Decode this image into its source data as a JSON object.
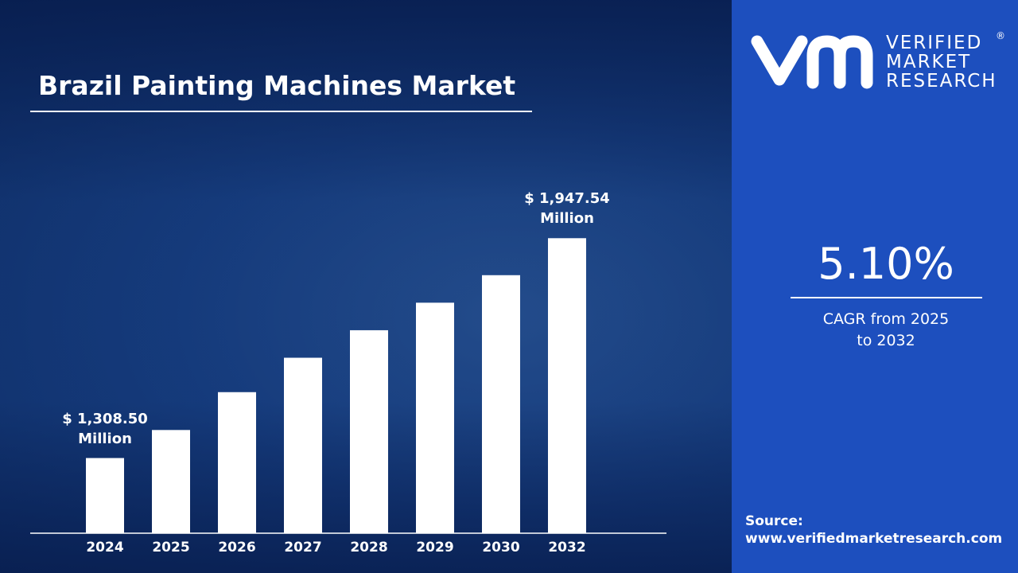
{
  "chart_data": {
    "type": "bar",
    "title": "Brazil Painting Machines Market",
    "categories": [
      "2024",
      "2025",
      "2026",
      "2027",
      "2028",
      "2029",
      "2030",
      "2032"
    ],
    "values": [
      1308.5,
      1390,
      1500,
      1600,
      1680,
      1760,
      1840,
      1947.54
    ],
    "value_labels": [
      "$ 1,308.50 Million",
      null,
      null,
      null,
      null,
      null,
      null,
      "$ 1,947.54 Million"
    ],
    "color": "#ffffff",
    "ylim": [
      1090,
      2050
    ]
  },
  "panel": {
    "brand": [
      "VERIFIED",
      "MARKET",
      "RESEARCH"
    ],
    "registered": "®",
    "cagr": "5.10%",
    "cagr_caption": "CAGR from 2025 to 2032",
    "source_label": "Source:",
    "source_url": "www.verifiedmarketresearch.com"
  }
}
